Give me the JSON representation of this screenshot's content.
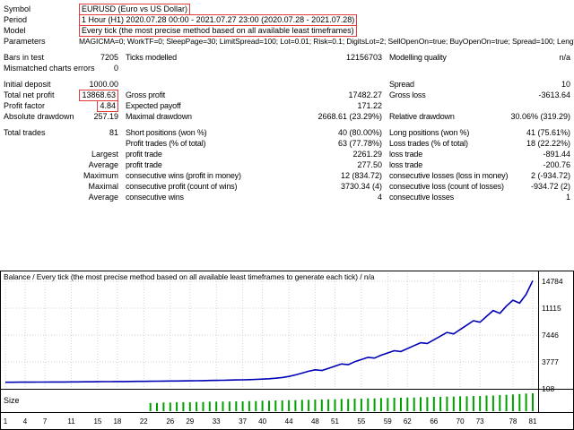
{
  "report": {
    "highlight_color": "#e23b3b",
    "rows": [
      {
        "type": "span",
        "label": "Symbol",
        "value": "EURUSD (Euro vs US Dollar)",
        "boxed": true
      },
      {
        "type": "span",
        "label": "Period",
        "value": "1 Hour (H1) 2020.07.28 00:00 - 2021.07.27 23:00 (2020.07.28 - 2021.07.28)",
        "boxed": true
      },
      {
        "type": "span",
        "label": "Model",
        "value": "Every tick (the most precise method based on all available least timeframes)",
        "boxed": true
      },
      {
        "type": "span",
        "label": "Parameters",
        "value": "MAGICMA=0; WorkTF=0; SleepPage=30; LimitSpread=100; Lot=0.01; Risk=0.1; DigitsLot=2; SellOpenOn=true; BuyOpenOn=true; Spread=100; Length=48; DerivativeFirst=274; DerivativeSecond=144; LevelDown=18; LevelUp=83; MinLengthFirst=0; MinLengthSecond=0;",
        "wrap": true
      },
      {
        "type": "spacer"
      },
      {
        "type": "six",
        "cells": [
          "Bars in test",
          "7205",
          "Ticks modelled",
          "12156703",
          "Modelling quality",
          "n/a"
        ]
      },
      {
        "type": "six",
        "cells": [
          "Mismatched charts errors",
          "0",
          "",
          "",
          "",
          ""
        ]
      },
      {
        "type": "spacer"
      },
      {
        "type": "six",
        "cells": [
          "Initial deposit",
          "1000.00",
          "",
          "",
          "Spread",
          "10"
        ]
      },
      {
        "type": "six",
        "cells": [
          "Total net profit",
          "13868.63",
          "Gross profit",
          "17482.27",
          "Gross loss",
          "-3613.64"
        ],
        "boxed_v1": true
      },
      {
        "type": "six",
        "cells": [
          "Profit factor",
          "4.84",
          "Expected payoff",
          "171.22",
          "",
          ""
        ],
        "boxed_v1": true
      },
      {
        "type": "six",
        "cells": [
          "Absolute drawdown",
          "257.19",
          "Maximal drawdown",
          "2668.61 (23.29%)",
          "Relative drawdown",
          "30.06% (319.29)"
        ]
      },
      {
        "type": "spacer"
      },
      {
        "type": "six",
        "cells": [
          "Total trades",
          "81",
          "Short positions (won %)",
          "40 (80.00%)",
          "Long positions (won %)",
          "41 (75.61%)"
        ]
      },
      {
        "type": "six",
        "cells": [
          "",
          "",
          "Profit trades (% of total)",
          "63 (77.78%)",
          "Loss trades (% of total)",
          "18 (22.22%)"
        ]
      },
      {
        "type": "six",
        "cells": [
          "",
          "Largest",
          "profit trade",
          "2261.29",
          "loss trade",
          "-891.44"
        ]
      },
      {
        "type": "six",
        "cells": [
          "",
          "Average",
          "profit trade",
          "277.50",
          "loss trade",
          "-200.76"
        ]
      },
      {
        "type": "six",
        "cells": [
          "",
          "Maximum",
          "consecutive wins (profit in money)",
          "12 (834.72)",
          "consecutive losses (loss in money)",
          "2 (-934.72)"
        ]
      },
      {
        "type": "six",
        "cells": [
          "",
          "Maximal",
          "consecutive profit (count of wins)",
          "3730.34 (4)",
          "consecutive loss (count of losses)",
          "-934.72 (2)"
        ]
      },
      {
        "type": "six",
        "cells": [
          "",
          "Average",
          "consecutive wins",
          "4",
          "consecutive losses",
          "1"
        ]
      }
    ]
  },
  "chart_data": {
    "type": "line",
    "title": "Balance / Every tick (the most precise method based on all available least timeframes to generate each tick) / n/a",
    "size_label": "Size",
    "y_ticks": [
      14784,
      11115,
      7446,
      3777,
      108
    ],
    "x_ticks": [
      1,
      4,
      7,
      11,
      15,
      18,
      22,
      26,
      29,
      33,
      37,
      40,
      44,
      48,
      51,
      55,
      59,
      62,
      66,
      70,
      73,
      78,
      81
    ],
    "xlim": [
      1,
      81
    ],
    "ylim": [
      108,
      14784
    ],
    "grid": true,
    "legend_position": "none",
    "line_color": "#0000b4",
    "bar_color": "#00a000",
    "series": [
      {
        "name": "Balance",
        "x": [
          1,
          2,
          3,
          4,
          5,
          6,
          7,
          8,
          9,
          10,
          11,
          12,
          13,
          14,
          15,
          16,
          17,
          18,
          19,
          20,
          21,
          22,
          23,
          24,
          25,
          26,
          27,
          28,
          29,
          30,
          31,
          32,
          33,
          34,
          35,
          36,
          37,
          38,
          39,
          40,
          41,
          42,
          43,
          44,
          45,
          46,
          47,
          48,
          49,
          50,
          51,
          52,
          53,
          54,
          55,
          56,
          57,
          58,
          59,
          60,
          61,
          62,
          63,
          64,
          65,
          66,
          67,
          68,
          69,
          70,
          71,
          72,
          73,
          74,
          75,
          76,
          77,
          78,
          79,
          80,
          81
        ],
        "y": [
          1000,
          1004,
          1008,
          1013,
          1017,
          1022,
          1027,
          1032,
          1038,
          1043,
          1049,
          1055,
          1061,
          1067,
          1074,
          1081,
          1088,
          1095,
          1103,
          1111,
          1119,
          1128,
          1137,
          1146,
          1156,
          1166,
          1177,
          1188,
          1200,
          1213,
          1227,
          1242,
          1258,
          1275,
          1293,
          1313,
          1335,
          1360,
          1390,
          1430,
          1480,
          1550,
          1650,
          1800,
          2000,
          2250,
          2500,
          2700,
          2600,
          2900,
          3200,
          3500,
          3400,
          3800,
          4100,
          4400,
          4300,
          4700,
          5000,
          5300,
          5200,
          5600,
          6000,
          6400,
          6300,
          6800,
          7300,
          7800,
          7600,
          8200,
          8800,
          9400,
          9200,
          10000,
          10800,
          10400,
          11400,
          12200,
          11800,
          13000,
          14868
        ]
      }
    ],
    "size_series": {
      "name": "Size",
      "values": [
        0.01,
        0.01,
        0.01,
        0.01,
        0.01,
        0.01,
        0.01,
        0.01,
        0.01,
        0.01,
        0.01,
        0.01,
        0.01,
        0.01,
        0.01,
        0.01,
        0.01,
        0.01,
        0.01,
        0.01,
        0.01,
        0.01,
        0.55,
        0.55,
        0.58,
        0.58,
        0.6,
        0.6,
        0.6,
        0.62,
        0.62,
        0.64,
        0.64,
        0.65,
        0.65,
        0.66,
        0.66,
        0.68,
        0.68,
        0.7,
        0.7,
        0.72,
        0.72,
        0.74,
        0.74,
        0.76,
        0.76,
        0.78,
        0.78,
        0.8,
        0.8,
        0.82,
        0.82,
        0.84,
        0.84,
        0.86,
        0.86,
        0.88,
        0.88,
        0.9,
        0.9,
        0.92,
        0.92,
        0.94,
        0.94,
        0.96,
        0.96,
        0.98,
        0.98,
        1.0,
        1.0,
        1.02,
        1.02,
        1.05,
        1.05,
        1.08,
        1.1,
        1.12,
        1.15,
        1.18,
        1.2
      ]
    }
  }
}
